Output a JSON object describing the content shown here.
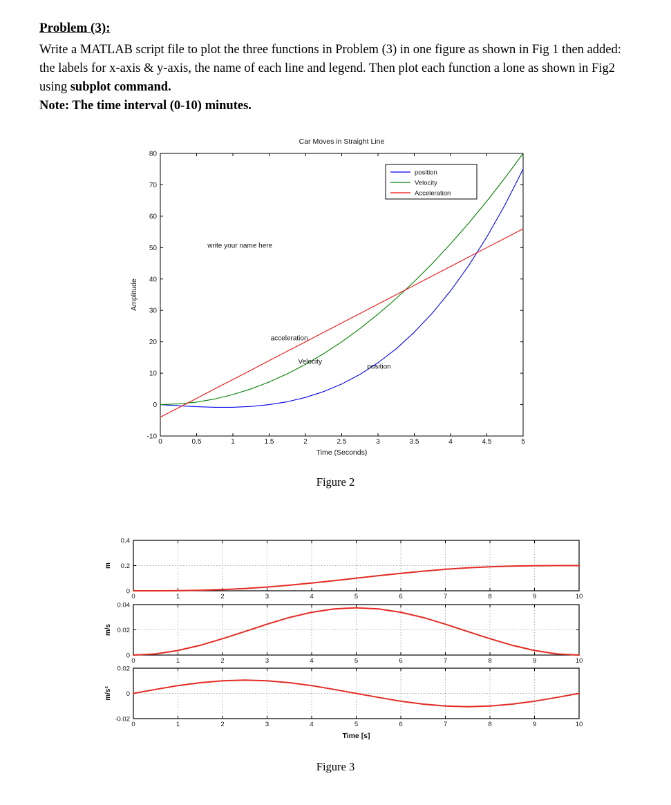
{
  "document": {
    "heading": "Problem (3):",
    "body_text": "Write a MATLAB script file to plot the three functions in Problem (3) in one figure as shown in Fig 1 then added: the labels for x-axis & y-axis, the name of each line and legend. Then plot each function a lone as shown in Fig2 using ",
    "body_bold": "subplot command.",
    "note": "Note: The time interval (0-10) minutes."
  },
  "figures": {
    "fig2_caption": "Figure 2",
    "fig3_caption": "Figure 3"
  },
  "chart_data": [
    {
      "type": "line",
      "title": "Car Moves in Straight Line",
      "xlabel": "Time (Seconds)",
      "ylabel": "Amplitude",
      "xlim": [
        0,
        5
      ],
      "ylim": [
        -10,
        80
      ],
      "xticks": [
        0,
        0.5,
        1,
        1.5,
        2,
        2.5,
        3,
        3.5,
        4,
        4.5,
        5
      ],
      "yticks": [
        -10,
        0,
        10,
        20,
        30,
        40,
        50,
        60,
        70,
        80
      ],
      "grid": false,
      "legend_position": "upper right",
      "x": [
        0,
        0.25,
        0.5,
        0.75,
        1,
        1.25,
        1.5,
        1.75,
        2,
        2.25,
        2.5,
        2.75,
        3,
        3.25,
        3.5,
        3.75,
        4,
        4.25,
        4.5,
        4.75,
        5
      ],
      "series": [
        {
          "name": "position",
          "color": "#0000ee",
          "values": [
            0,
            -0.36,
            -0.67,
            -0.85,
            -0.84,
            -0.59,
            -0.02,
            0.91,
            2.28,
            4.14,
            6.56,
            9.6,
            13.32,
            17.78,
            23.05,
            29.18,
            36.24,
            44.29,
            53.39,
            63.6,
            75
          ]
        },
        {
          "name": "Velocity",
          "color": "#008000",
          "values": [
            0,
            0.2,
            0.8,
            1.8,
            3.2,
            5,
            7.2,
            9.8,
            12.8,
            16.2,
            20,
            24.2,
            28.8,
            33.8,
            39.2,
            45,
            51.2,
            57.8,
            64.8,
            72.2,
            80
          ]
        },
        {
          "name": "Acceleration",
          "color": "#ee1111",
          "values": [
            -4,
            -1,
            2,
            5,
            8,
            11,
            14,
            17,
            20,
            23,
            26,
            29,
            32,
            35,
            38,
            41,
            44,
            47,
            50,
            53,
            56
          ]
        }
      ],
      "annotations": [
        {
          "text": "write your name here",
          "x": 0.65,
          "y": 50
        },
        {
          "text": "acceleration",
          "x": 1.52,
          "y": 20.5
        },
        {
          "text": "Velocity",
          "x": 1.9,
          "y": 13
        },
        {
          "text": "position",
          "x": 2.85,
          "y": 11.5
        }
      ]
    },
    {
      "type": "line-subplots",
      "xlabel": "Time [s]",
      "xlim": [
        0,
        10
      ],
      "xticks": [
        0,
        1,
        2,
        3,
        4,
        5,
        6,
        7,
        8,
        9,
        10
      ],
      "grid": true,
      "x": [
        0,
        0.5,
        1,
        1.5,
        2,
        2.5,
        3,
        3.5,
        4,
        4.5,
        5,
        5.5,
        6,
        6.5,
        7,
        7.5,
        8,
        8.5,
        9,
        9.5,
        10
      ],
      "subplots": [
        {
          "ylabel": "m",
          "ylim": [
            0,
            0.4
          ],
          "yticks": [
            0,
            0.2,
            0.4
          ],
          "color": "#e32b22",
          "values": [
            0,
            0.0002,
            0.0013,
            0.0042,
            0.0097,
            0.0182,
            0.0297,
            0.0442,
            0.0613,
            0.0802,
            0.1,
            0.1198,
            0.1387,
            0.1558,
            0.1703,
            0.1818,
            0.1903,
            0.1958,
            0.1987,
            0.1998,
            0.2
          ]
        },
        {
          "ylabel": "m/s",
          "ylim": [
            0,
            0.04
          ],
          "yticks": [
            0,
            0.02,
            0.04
          ],
          "color": "#e32b22",
          "values": [
            0,
            0.0009,
            0.0036,
            0.0077,
            0.013,
            0.0187,
            0.0245,
            0.0298,
            0.0339,
            0.0366,
            0.0375,
            0.0366,
            0.0339,
            0.0298,
            0.0245,
            0.0187,
            0.013,
            0.0077,
            0.0036,
            0.0009,
            0
          ]
        },
        {
          "ylabel": "m/s²",
          "ylim": [
            -0.02,
            0.02
          ],
          "yticks": [
            -0.02,
            0,
            0.02
          ],
          "color": "#e32b22",
          "values": [
            0,
            0.0032,
            0.0062,
            0.0085,
            0.01,
            0.0105,
            0.01,
            0.0085,
            0.0062,
            0.0032,
            0,
            -0.0032,
            -0.0062,
            -0.0085,
            -0.01,
            -0.0105,
            -0.01,
            -0.0085,
            -0.0062,
            -0.0032,
            0
          ]
        }
      ]
    }
  ]
}
